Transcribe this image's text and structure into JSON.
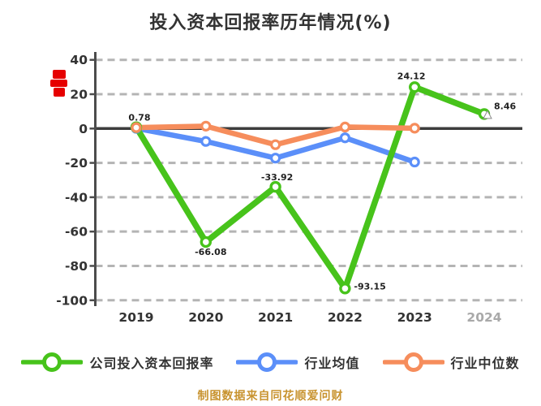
{
  "title": "投入资本回报率历年情况(%)",
  "footer_note": "制图数据来自同花顺爱问财",
  "icons": {
    "red_logo": "red-block-logo"
  },
  "chart_data": {
    "type": "line",
    "title": "投入资本回报率历年情况(%)",
    "categories": [
      "2019",
      "2020",
      "2021",
      "2022",
      "2023",
      "2024"
    ],
    "muted_last_x_label": true,
    "yticks": [
      40,
      20,
      0,
      -20,
      -40,
      -60,
      -80,
      -100
    ],
    "ylim": [
      -105,
      45
    ],
    "grid": "horizontal-dashed",
    "legend_position": "bottom",
    "series": [
      {
        "id": "company-roic",
        "name": "公司投入资本回报率",
        "color": "#47c31b",
        "values": [
          0.78,
          -66.08,
          -33.92,
          -93.15,
          24.12,
          8.46
        ],
        "point_labels": [
          "0.78",
          "-66.08",
          "-33.92",
          "-93.15",
          "24.12",
          "8.46"
        ]
      },
      {
        "id": "industry-mean",
        "name": "行业均值",
        "color": "#5b8ff9",
        "values": [
          0.12,
          -7.5,
          -17.2,
          -5.4,
          -19.5,
          null
        ]
      },
      {
        "id": "industry-median",
        "name": "行业中位数",
        "color": "#f68d5c",
        "values": [
          0.55,
          1.4,
          -9.4,
          0.9,
          0.2,
          null
        ]
      }
    ]
  }
}
